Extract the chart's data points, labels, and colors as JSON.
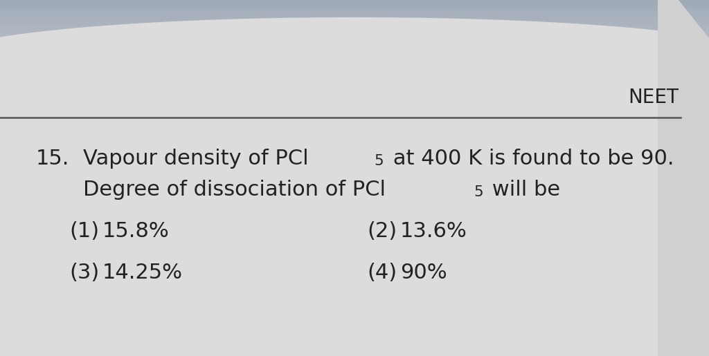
{
  "bg_top_color": "#a0aab8",
  "bg_bottom_color": "#c8ccd0",
  "page_color": "#dcdcdc",
  "page_color2": "#e4e4e4",
  "header_label": "NEET",
  "header_fontsize": 20,
  "text_color": "#222222",
  "line_color": "#555555",
  "main_fontsize": 22,
  "option_fontsize": 22,
  "q_num": "15.",
  "line1_before": "Vapour density of PCl",
  "line1_sub": "5",
  "line1_after": " at 400 K is found to be 90.",
  "line2_before": "Degree of dissociation of PCl",
  "line2_sub": "5",
  "line2_after": " will be",
  "opt1_num": "(1)",
  "opt1_val": "15.8%",
  "opt2_num": "(2)",
  "opt2_val": "13.6%",
  "opt3_num": "(3)",
  "opt3_val": "14.25%",
  "opt4_num": "(4)",
  "opt4_val": "90%"
}
